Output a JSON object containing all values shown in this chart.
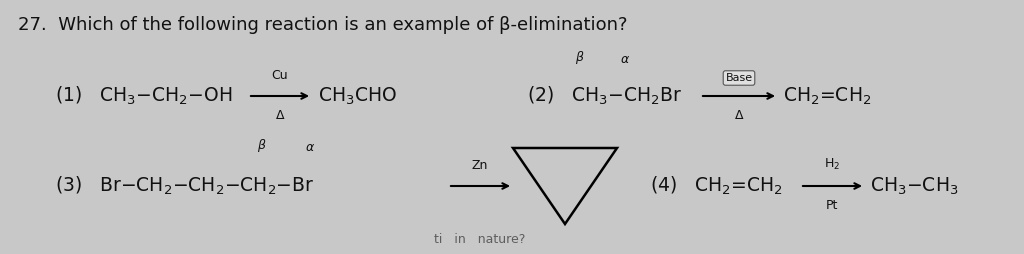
{
  "background_color": "#c8c8c8",
  "paper_color": "#e8e8e8",
  "title": "27.  Which of the following reaction is an example of β-elimination?",
  "title_fontsize": 13.0,
  "text_color": "#111111",
  "reactions": {
    "r1_formula": "(1)   CH$_3$$-$CH$_2$$-$OH",
    "r1_product": "CH$_3$CHO",
    "r1_above": "Cu",
    "r1_below": "Δ",
    "r2_beta": "β",
    "r2_alpha": "α",
    "r2_formula": "(2)   CH$_3$$-$CH$_2$Br",
    "r2_product": "CH$_2$=CH$_2$",
    "r2_above": "Base",
    "r2_below": "Δ",
    "r3_beta": "β",
    "r3_alpha": "α",
    "r3_formula": "(3)   Br$-$CH$_2$$-$CH$_2$$-$CH$_2$$-$Br",
    "r3_above": "Zn",
    "r4_formula": "(4)   CH$_2$=CH$_2$",
    "r4_product": "CH$_3$$-$CH$_3$",
    "r4_above": "H$_2$",
    "r4_below": "Pt"
  }
}
